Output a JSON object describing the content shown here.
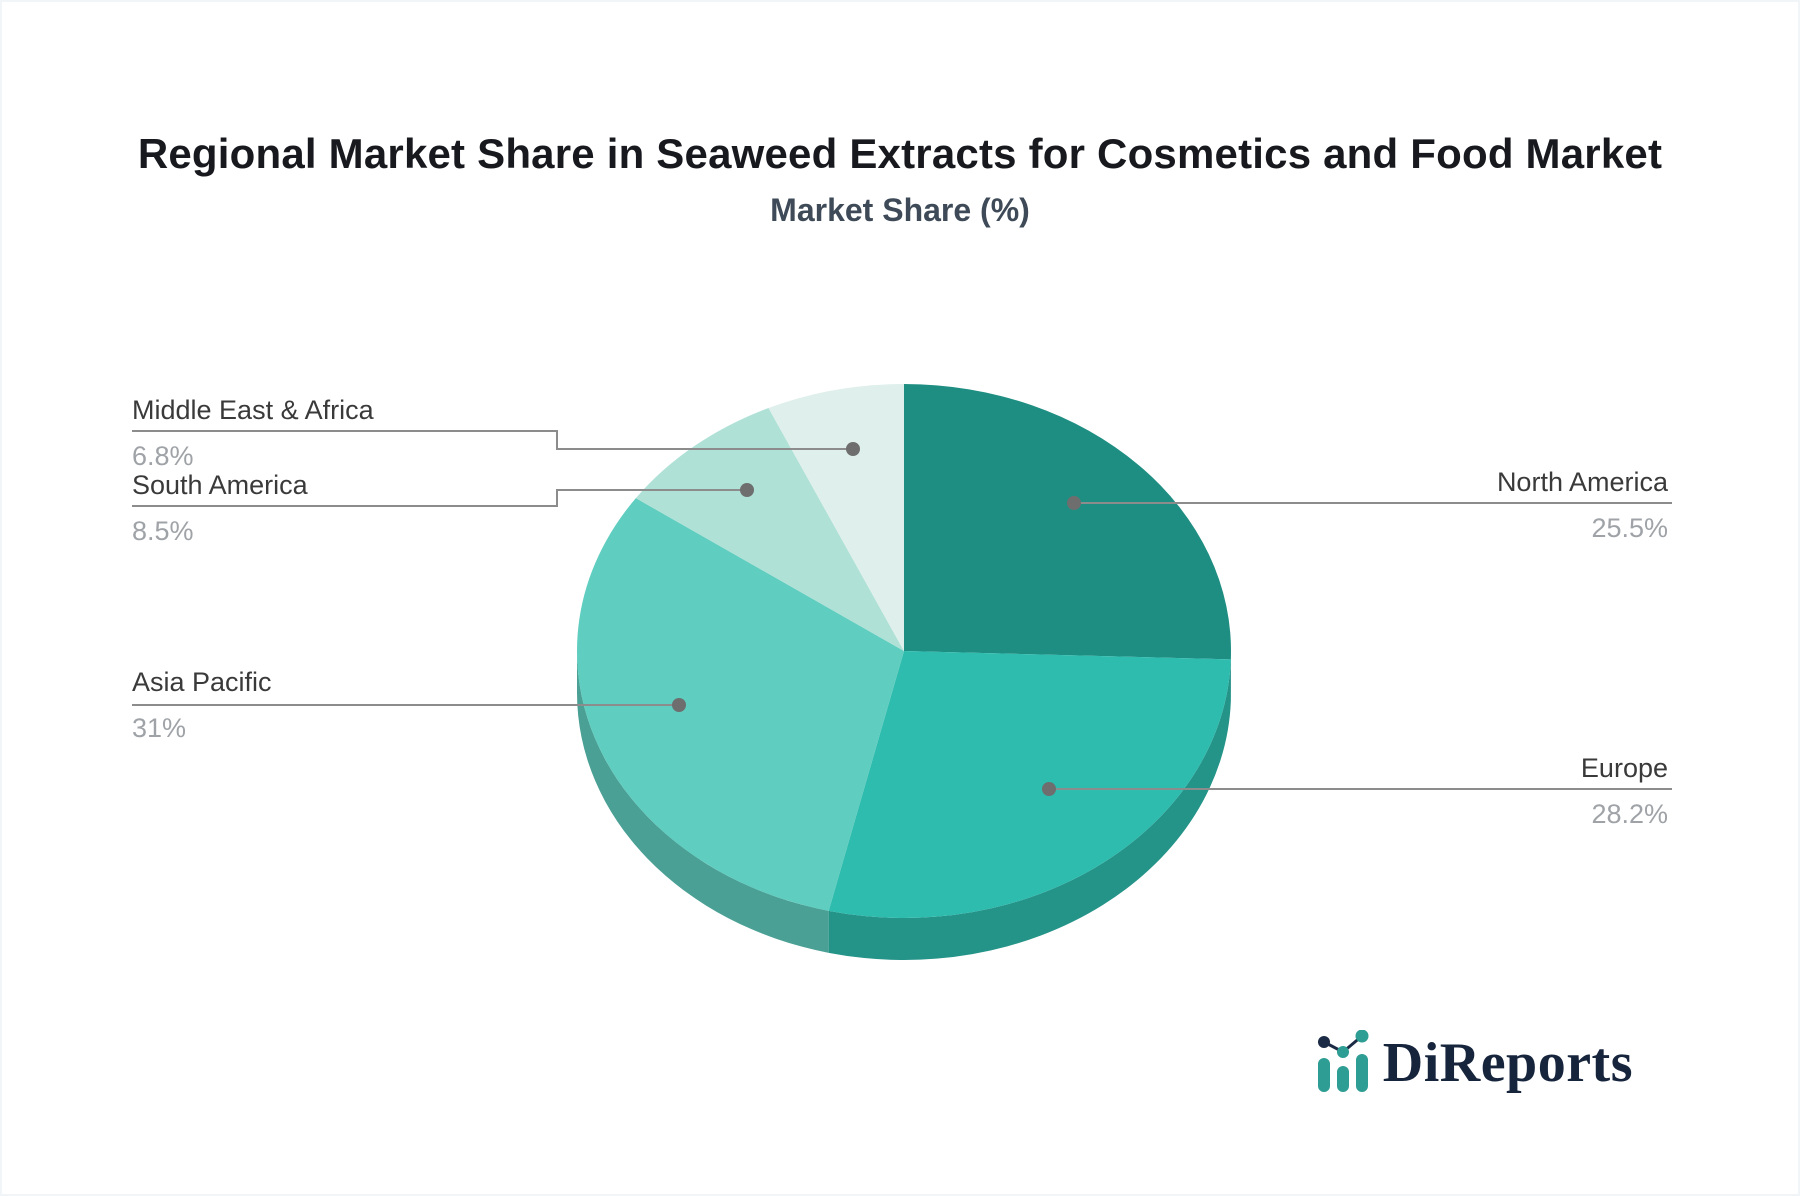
{
  "header": {
    "title": "Regional Market Share in Seaweed Extracts for Cosmetics and Food Market",
    "subtitle": "Market Share (%)"
  },
  "chart_data": {
    "type": "pie",
    "title": "Regional Market Share in Seaweed Extracts for Cosmetics and Food Market",
    "subtitle": "Market Share (%)",
    "unit": "%",
    "start_angle": "top",
    "direction": "clockwise",
    "effect": "3d",
    "legend_position": "callout-labels",
    "slices": [
      {
        "label": "North America",
        "value": 25.5,
        "value_label": "25.5%",
        "color": "#1E8E82"
      },
      {
        "label": "Europe",
        "value": 28.2,
        "value_label": "28.2%",
        "color": "#2EBCAE"
      },
      {
        "label": "Asia Pacific",
        "value": 31,
        "value_label": "31%",
        "color": "#5FCDBF"
      },
      {
        "label": "South America",
        "value": 8.5,
        "value_label": "8.5%",
        "color": "#AFE1D6"
      },
      {
        "label": "Middle East & Africa",
        "value": 6.8,
        "value_label": "6.8%",
        "color": "#DFEFEB"
      }
    ]
  },
  "logo": {
    "brand": "DiReports",
    "icon": "bar-line-chart-icon"
  },
  "colors": {
    "background": "#ffffff",
    "leader_line": "#8c8c8c",
    "leader_dot": "#6e6e6e",
    "label_text": "#3a3a3a",
    "value_text": "#9fa3a7",
    "title_text": "#17191e",
    "subtitle_text": "#3e4a57",
    "logo_text": "#16243c",
    "logo_teal": "#2e9d93",
    "logo_navy": "#1c2b45"
  }
}
